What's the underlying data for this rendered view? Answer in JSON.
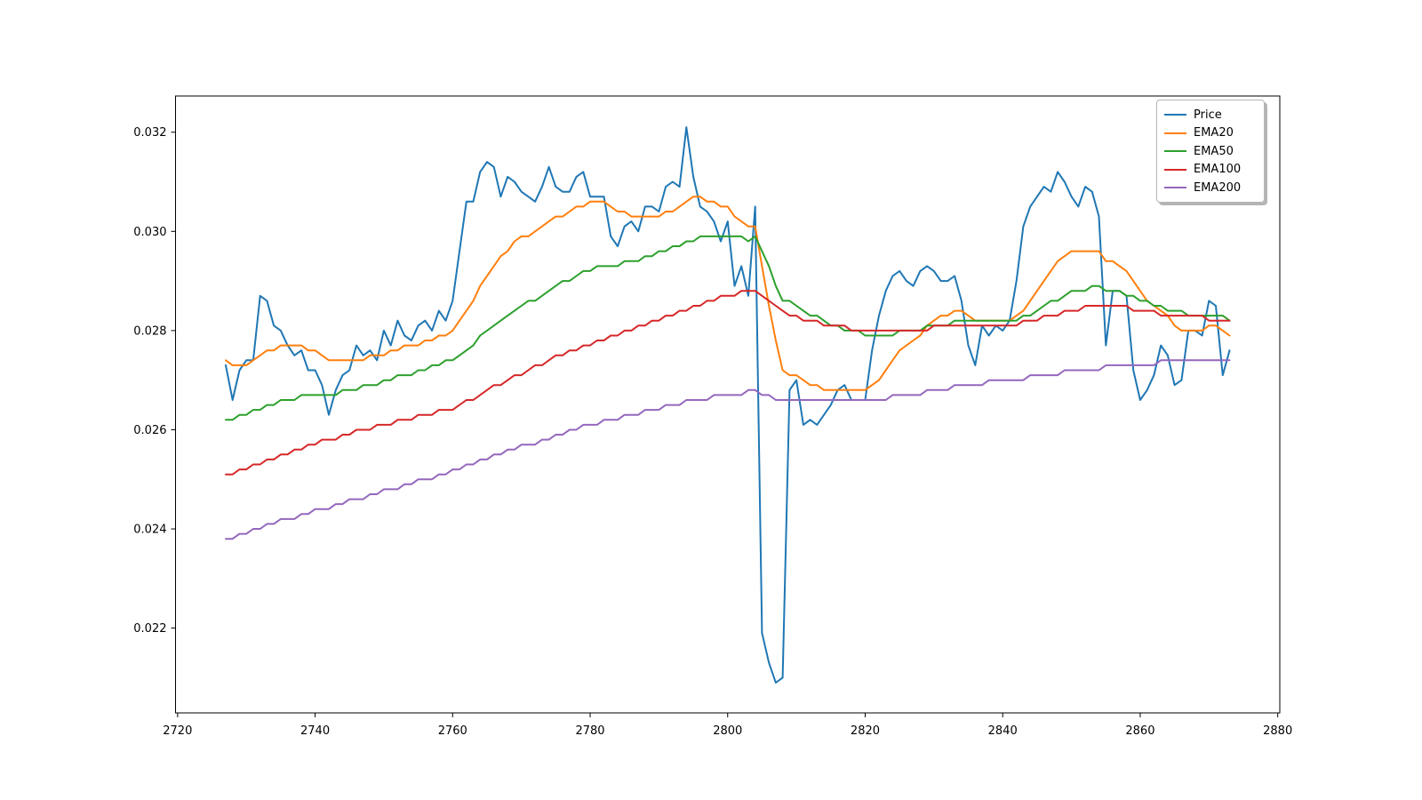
{
  "figure": {
    "background": "#ffffff",
    "border_color": "#000000"
  },
  "chart_data": {
    "type": "line",
    "title": "",
    "xlabel": "",
    "ylabel": "",
    "grid": false,
    "legend_position": "upper right",
    "xlim": [
      2719.7,
      2880.3
    ],
    "ylim": [
      0.02029,
      0.03273
    ],
    "x_start": 2727,
    "x_step": 1,
    "x_ticks": [
      {
        "value": 2720,
        "label": "2720"
      },
      {
        "value": 2740,
        "label": "2740"
      },
      {
        "value": 2760,
        "label": "2760"
      },
      {
        "value": 2780,
        "label": "2780"
      },
      {
        "value": 2800,
        "label": "2800"
      },
      {
        "value": 2820,
        "label": "2820"
      },
      {
        "value": 2840,
        "label": "2840"
      },
      {
        "value": 2860,
        "label": "2860"
      },
      {
        "value": 2880,
        "label": "2880"
      }
    ],
    "y_ticks": [
      {
        "value": 0.022,
        "label": "0.022"
      },
      {
        "value": 0.024,
        "label": "0.024"
      },
      {
        "value": 0.026,
        "label": "0.026"
      },
      {
        "value": 0.028,
        "label": "0.028"
      },
      {
        "value": 0.03,
        "label": "0.030"
      },
      {
        "value": 0.032,
        "label": "0.032"
      }
    ],
    "series": [
      {
        "name": "Price",
        "color": "#1f77b4",
        "values": [
          0.0273,
          0.0266,
          0.0272,
          0.0274,
          0.0274,
          0.0287,
          0.0286,
          0.0281,
          0.028,
          0.0277,
          0.0275,
          0.0276,
          0.0272,
          0.0272,
          0.0269,
          0.0263,
          0.0268,
          0.0271,
          0.0272,
          0.0277,
          0.0275,
          0.0276,
          0.0274,
          0.028,
          0.0277,
          0.0282,
          0.0279,
          0.0278,
          0.0281,
          0.0282,
          0.028,
          0.0284,
          0.0282,
          0.0286,
          0.0296,
          0.0306,
          0.0306,
          0.0312,
          0.0314,
          0.0313,
          0.0307,
          0.0311,
          0.031,
          0.0308,
          0.0307,
          0.0306,
          0.0309,
          0.0313,
          0.0309,
          0.0308,
          0.0308,
          0.0311,
          0.0312,
          0.0307,
          0.0307,
          0.0307,
          0.0299,
          0.0297,
          0.0301,
          0.0302,
          0.03,
          0.0305,
          0.0305,
          0.0304,
          0.0309,
          0.031,
          0.0309,
          0.0321,
          0.0311,
          0.0305,
          0.0304,
          0.0302,
          0.0298,
          0.0302,
          0.0289,
          0.0293,
          0.0287,
          0.0305,
          0.0219,
          0.0213,
          0.0209,
          0.021,
          0.0268,
          0.027,
          0.0261,
          0.0262,
          0.0261,
          0.0263,
          0.0265,
          0.0268,
          0.0269,
          0.0266,
          0.0266,
          0.0266,
          0.0276,
          0.0283,
          0.0288,
          0.0291,
          0.0292,
          0.029,
          0.0289,
          0.0292,
          0.0293,
          0.0292,
          0.029,
          0.029,
          0.0291,
          0.0286,
          0.0277,
          0.0273,
          0.0281,
          0.0279,
          0.0281,
          0.028,
          0.0282,
          0.029,
          0.0301,
          0.0305,
          0.0307,
          0.0309,
          0.0308,
          0.0312,
          0.031,
          0.0307,
          0.0305,
          0.0309,
          0.0308,
          0.0303,
          0.0277,
          0.0288,
          0.0288,
          0.0287,
          0.0272,
          0.0266,
          0.0268,
          0.0271,
          0.0277,
          0.0275,
          0.0269,
          0.027,
          0.028,
          0.028,
          0.0279,
          0.0286,
          0.0285,
          0.0271,
          0.0276
        ]
      },
      {
        "name": "EMA20",
        "color": "#ff7f0e",
        "values": [
          0.0274,
          0.0273,
          0.0273,
          0.0273,
          0.0274,
          0.0275,
          0.0276,
          0.0276,
          0.0277,
          0.0277,
          0.0277,
          0.0277,
          0.0276,
          0.0276,
          0.0275,
          0.0274,
          0.0274,
          0.0274,
          0.0274,
          0.0274,
          0.0274,
          0.0275,
          0.0275,
          0.0275,
          0.0276,
          0.0276,
          0.0277,
          0.0277,
          0.0277,
          0.0278,
          0.0278,
          0.0279,
          0.0279,
          0.028,
          0.0282,
          0.0284,
          0.0286,
          0.0289,
          0.0291,
          0.0293,
          0.0295,
          0.0296,
          0.0298,
          0.0299,
          0.0299,
          0.03,
          0.0301,
          0.0302,
          0.0303,
          0.0303,
          0.0304,
          0.0305,
          0.0305,
          0.0306,
          0.0306,
          0.0306,
          0.0305,
          0.0304,
          0.0304,
          0.0303,
          0.0303,
          0.0303,
          0.0303,
          0.0303,
          0.0304,
          0.0304,
          0.0305,
          0.0306,
          0.0307,
          0.0307,
          0.0306,
          0.0306,
          0.0305,
          0.0305,
          0.0303,
          0.0302,
          0.0301,
          0.0301,
          0.0293,
          0.0285,
          0.0278,
          0.0272,
          0.0271,
          0.0271,
          0.027,
          0.0269,
          0.0269,
          0.0268,
          0.0268,
          0.0268,
          0.0268,
          0.0268,
          0.0268,
          0.0268,
          0.0269,
          0.027,
          0.0272,
          0.0274,
          0.0276,
          0.0277,
          0.0278,
          0.0279,
          0.0281,
          0.0282,
          0.0283,
          0.0283,
          0.0284,
          0.0284,
          0.0283,
          0.0282,
          0.0282,
          0.0282,
          0.0282,
          0.0282,
          0.0282,
          0.0283,
          0.0284,
          0.0286,
          0.0288,
          0.029,
          0.0292,
          0.0294,
          0.0295,
          0.0296,
          0.0296,
          0.0296,
          0.0296,
          0.0296,
          0.0294,
          0.0294,
          0.0293,
          0.0292,
          0.029,
          0.0288,
          0.0286,
          0.0285,
          0.0284,
          0.0283,
          0.0281,
          0.028,
          0.028,
          0.028,
          0.028,
          0.0281,
          0.0281,
          0.028,
          0.0279
        ]
      },
      {
        "name": "EMA50",
        "color": "#2ca02c",
        "values": [
          0.0262,
          0.0262,
          0.0263,
          0.0263,
          0.0264,
          0.0264,
          0.0265,
          0.0265,
          0.0266,
          0.0266,
          0.0266,
          0.0267,
          0.0267,
          0.0267,
          0.0267,
          0.0267,
          0.0267,
          0.0268,
          0.0268,
          0.0268,
          0.0269,
          0.0269,
          0.0269,
          0.027,
          0.027,
          0.0271,
          0.0271,
          0.0271,
          0.0272,
          0.0272,
          0.0273,
          0.0273,
          0.0274,
          0.0274,
          0.0275,
          0.0276,
          0.0277,
          0.0279,
          0.028,
          0.0281,
          0.0282,
          0.0283,
          0.0284,
          0.0285,
          0.0286,
          0.0286,
          0.0287,
          0.0288,
          0.0289,
          0.029,
          0.029,
          0.0291,
          0.0292,
          0.0292,
          0.0293,
          0.0293,
          0.0293,
          0.0293,
          0.0294,
          0.0294,
          0.0294,
          0.0295,
          0.0295,
          0.0296,
          0.0296,
          0.0297,
          0.0297,
          0.0298,
          0.0298,
          0.0299,
          0.0299,
          0.0299,
          0.0299,
          0.0299,
          0.0299,
          0.0299,
          0.0298,
          0.0299,
          0.0296,
          0.0293,
          0.0289,
          0.0286,
          0.0286,
          0.0285,
          0.0284,
          0.0283,
          0.0283,
          0.0282,
          0.0281,
          0.0281,
          0.028,
          0.028,
          0.028,
          0.0279,
          0.0279,
          0.0279,
          0.0279,
          0.0279,
          0.028,
          0.028,
          0.028,
          0.028,
          0.0281,
          0.0281,
          0.0281,
          0.0281,
          0.0282,
          0.0282,
          0.0282,
          0.0282,
          0.0282,
          0.0282,
          0.0282,
          0.0282,
          0.0282,
          0.0282,
          0.0283,
          0.0283,
          0.0284,
          0.0285,
          0.0286,
          0.0286,
          0.0287,
          0.0288,
          0.0288,
          0.0288,
          0.0289,
          0.0289,
          0.0288,
          0.0288,
          0.0288,
          0.0287,
          0.0287,
          0.0286,
          0.0286,
          0.0285,
          0.0285,
          0.0284,
          0.0284,
          0.0284,
          0.0283,
          0.0283,
          0.0283,
          0.0283,
          0.0283,
          0.0283,
          0.0282
        ]
      },
      {
        "name": "EMA100",
        "color": "#d62728",
        "values": [
          0.0251,
          0.0251,
          0.0252,
          0.0252,
          0.0253,
          0.0253,
          0.0254,
          0.0254,
          0.0255,
          0.0255,
          0.0256,
          0.0256,
          0.0257,
          0.0257,
          0.0258,
          0.0258,
          0.0258,
          0.0259,
          0.0259,
          0.026,
          0.026,
          0.026,
          0.0261,
          0.0261,
          0.0261,
          0.0262,
          0.0262,
          0.0262,
          0.0263,
          0.0263,
          0.0263,
          0.0264,
          0.0264,
          0.0264,
          0.0265,
          0.0266,
          0.0266,
          0.0267,
          0.0268,
          0.0269,
          0.0269,
          0.027,
          0.0271,
          0.0271,
          0.0272,
          0.0273,
          0.0273,
          0.0274,
          0.0275,
          0.0275,
          0.0276,
          0.0276,
          0.0277,
          0.0277,
          0.0278,
          0.0278,
          0.0279,
          0.0279,
          0.028,
          0.028,
          0.0281,
          0.0281,
          0.0282,
          0.0282,
          0.0283,
          0.0283,
          0.0284,
          0.0284,
          0.0285,
          0.0285,
          0.0286,
          0.0286,
          0.0287,
          0.0287,
          0.0287,
          0.0288,
          0.0288,
          0.0288,
          0.0287,
          0.0286,
          0.0285,
          0.0284,
          0.0283,
          0.0283,
          0.0282,
          0.0282,
          0.0282,
          0.0281,
          0.0281,
          0.0281,
          0.0281,
          0.028,
          0.028,
          0.028,
          0.028,
          0.028,
          0.028,
          0.028,
          0.028,
          0.028,
          0.028,
          0.028,
          0.028,
          0.0281,
          0.0281,
          0.0281,
          0.0281,
          0.0281,
          0.0281,
          0.0281,
          0.0281,
          0.0281,
          0.0281,
          0.0281,
          0.0281,
          0.0281,
          0.0282,
          0.0282,
          0.0282,
          0.0283,
          0.0283,
          0.0283,
          0.0284,
          0.0284,
          0.0284,
          0.0285,
          0.0285,
          0.0285,
          0.0285,
          0.0285,
          0.0285,
          0.0285,
          0.0284,
          0.0284,
          0.0284,
          0.0284,
          0.0283,
          0.0283,
          0.0283,
          0.0283,
          0.0283,
          0.0283,
          0.0283,
          0.0282,
          0.0282,
          0.0282,
          0.0282
        ]
      },
      {
        "name": "EMA200",
        "color": "#9467bd",
        "values": [
          0.0238,
          0.0238,
          0.0239,
          0.0239,
          0.024,
          0.024,
          0.0241,
          0.0241,
          0.0242,
          0.0242,
          0.0242,
          0.0243,
          0.0243,
          0.0244,
          0.0244,
          0.0244,
          0.0245,
          0.0245,
          0.0246,
          0.0246,
          0.0246,
          0.0247,
          0.0247,
          0.0248,
          0.0248,
          0.0248,
          0.0249,
          0.0249,
          0.025,
          0.025,
          0.025,
          0.0251,
          0.0251,
          0.0252,
          0.0252,
          0.0253,
          0.0253,
          0.0254,
          0.0254,
          0.0255,
          0.0255,
          0.0256,
          0.0256,
          0.0257,
          0.0257,
          0.0257,
          0.0258,
          0.0258,
          0.0259,
          0.0259,
          0.026,
          0.026,
          0.0261,
          0.0261,
          0.0261,
          0.0262,
          0.0262,
          0.0262,
          0.0263,
          0.0263,
          0.0263,
          0.0264,
          0.0264,
          0.0264,
          0.0265,
          0.0265,
          0.0265,
          0.0266,
          0.0266,
          0.0266,
          0.0266,
          0.0267,
          0.0267,
          0.0267,
          0.0267,
          0.0267,
          0.0268,
          0.0268,
          0.0267,
          0.0267,
          0.0266,
          0.0266,
          0.0266,
          0.0266,
          0.0266,
          0.0266,
          0.0266,
          0.0266,
          0.0266,
          0.0266,
          0.0266,
          0.0266,
          0.0266,
          0.0266,
          0.0266,
          0.0266,
          0.0266,
          0.0267,
          0.0267,
          0.0267,
          0.0267,
          0.0267,
          0.0268,
          0.0268,
          0.0268,
          0.0268,
          0.0269,
          0.0269,
          0.0269,
          0.0269,
          0.0269,
          0.027,
          0.027,
          0.027,
          0.027,
          0.027,
          0.027,
          0.0271,
          0.0271,
          0.0271,
          0.0271,
          0.0271,
          0.0272,
          0.0272,
          0.0272,
          0.0272,
          0.0272,
          0.0272,
          0.0273,
          0.0273,
          0.0273,
          0.0273,
          0.0273,
          0.0273,
          0.0273,
          0.0273,
          0.0274,
          0.0274,
          0.0274,
          0.0274,
          0.0274,
          0.0274,
          0.0274,
          0.0274,
          0.0274,
          0.0274,
          0.0274
        ]
      }
    ]
  }
}
